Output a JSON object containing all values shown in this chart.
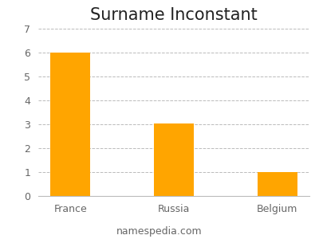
{
  "title": "Surname Inconstant",
  "categories": [
    "France",
    "Russia",
    "Belgium"
  ],
  "values": [
    6,
    3.05,
    1.0
  ],
  "bar_color": "#FFA500",
  "ylim": [
    0,
    7
  ],
  "yticks": [
    0,
    1,
    2,
    3,
    4,
    5,
    6,
    7
  ],
  "grid_color": "#bbbbbb",
  "background_color": "#ffffff",
  "watermark": "namespedia.com",
  "title_fontsize": 15,
  "tick_fontsize": 9,
  "watermark_fontsize": 9,
  "bar_width": 0.38
}
